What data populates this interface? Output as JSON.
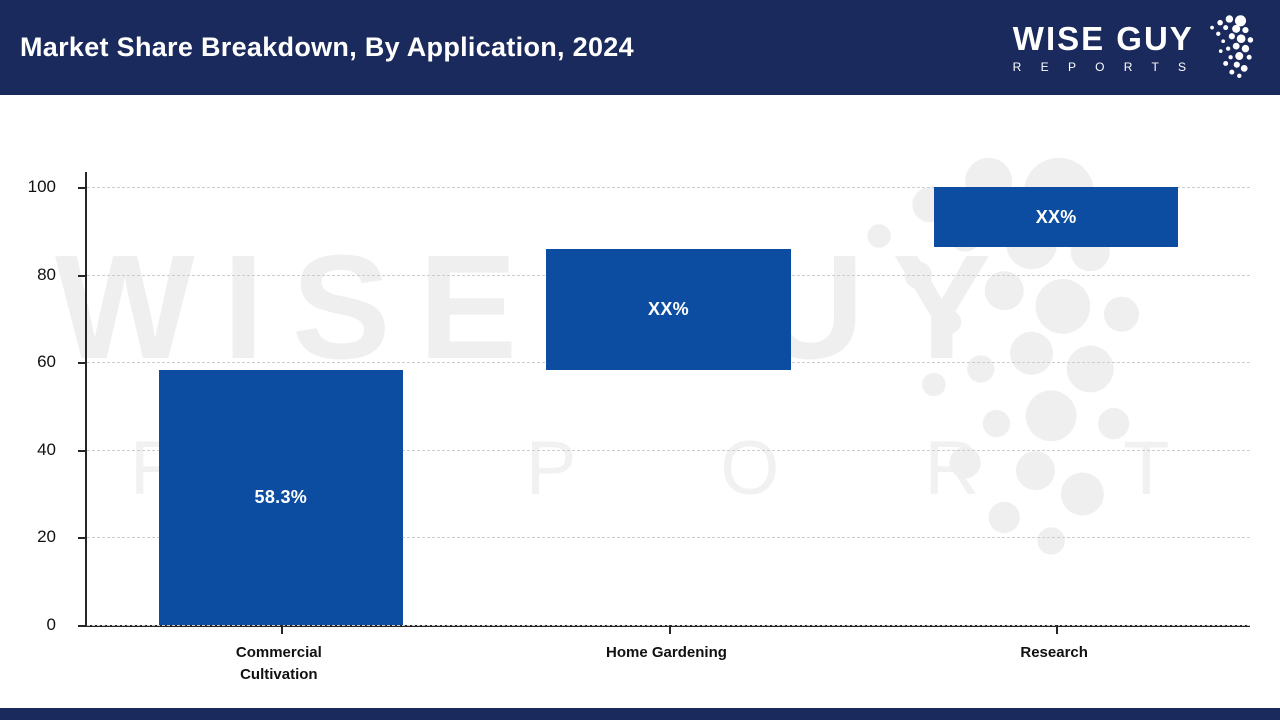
{
  "header": {
    "title": "Market Share Breakdown, By Application, 2024",
    "logo": {
      "line1": "WISE GUY",
      "line2": "R E P O R T S"
    }
  },
  "watermark": {
    "line1": "WISE GUY",
    "line2": "R E P O R T S"
  },
  "colors": {
    "header_bg": "#1b2a5c",
    "bar": "#0d4da1",
    "bar_label": "#ffffff",
    "grid": "#cdcdcd",
    "axis": "#262626",
    "watermark": "#efefef"
  },
  "chart_data": {
    "type": "bar",
    "subtype": "waterfall",
    "title": "Market Share Breakdown, By Application, 2024",
    "categories": [
      "Commercial\nCultivation",
      "Home Gardening",
      "Research"
    ],
    "series": [
      {
        "name": "Market Share",
        "segments": [
          {
            "category": "Commercial Cultivation",
            "start": 0,
            "end": 58.3,
            "label": "58.3%"
          },
          {
            "category": "Home Gardening",
            "start": 58.3,
            "end": 85.8,
            "label": "XX%"
          },
          {
            "category": "Research",
            "start": 86.2,
            "end": 100,
            "label": "XX%"
          }
        ]
      }
    ],
    "xlabel": "",
    "ylabel": "",
    "ylim": [
      0,
      100
    ],
    "yticks": [
      0,
      20,
      40,
      60,
      80,
      100
    ],
    "grid": "dashed-horizontal",
    "legend": "none",
    "bar_color": "#0d4da1",
    "bar_label_color": "#ffffff"
  }
}
